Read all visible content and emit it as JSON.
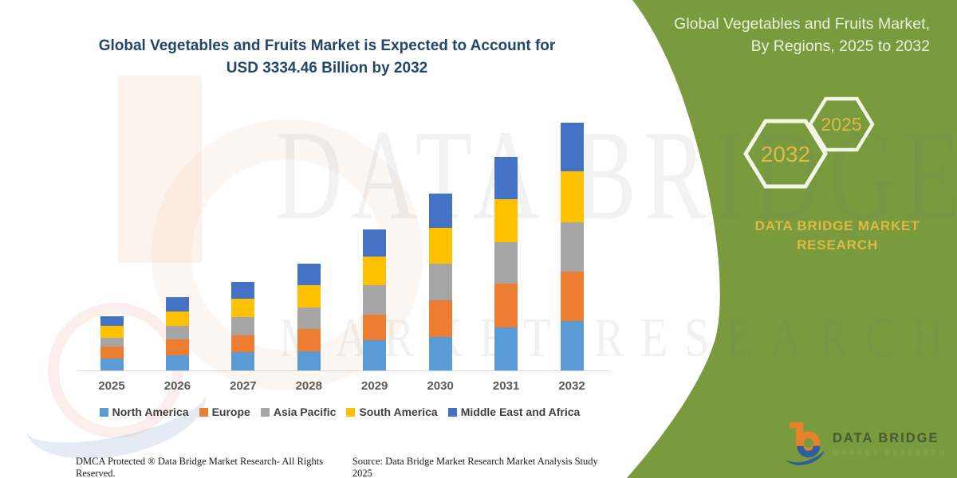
{
  "header": {
    "title_line1": "Global Vegetables and Fruits Market is Expected to Account for",
    "title_line2": "USD 3334.46 Billion by 2032"
  },
  "side_panel": {
    "title_line1": "Global Vegetables and Fruits Market,",
    "title_line2": "By Regions, 2025 to 2032",
    "hexagon_back_label": "2032",
    "hexagon_front_label": "2025",
    "brand_line1": "DATA BRIDGE MARKET",
    "brand_line2": "RESEARCH",
    "colors": {
      "panel_green": "#7A9A3E",
      "gold_text": "#DCBA45",
      "hexagon_stroke": "#F2F6E7",
      "panel_title_text": "#EAF1DC"
    }
  },
  "watermark": {
    "line1": "DATA BRIDGE",
    "line2": "MARKET RESEARCH"
  },
  "footer": {
    "dmca": "DMCA Protected ® Data Bridge Market Research-  All Rights Reserved.",
    "source": "Source: Data Bridge Market Research  Market Analysis Study 2025"
  },
  "logo": {
    "text_primary": "DATA BRIDGE",
    "text_secondary": "MARKET RESEARCH",
    "mark_orange": "#E8822A",
    "mark_blue": "#2E5E9E"
  },
  "chart_data": {
    "type": "bar",
    "stacked": true,
    "title": "Global Vegetables and Fruits Market is Expected to Account for USD 3334.46 Billion by 2032",
    "unit": "USD Billion",
    "categories": [
      "2025",
      "2026",
      "2027",
      "2028",
      "2029",
      "2030",
      "2031",
      "2032"
    ],
    "series": [
      {
        "name": "North America",
        "color": "#5B9BD5",
        "values": [
          161,
          204,
          247,
          257,
          407,
          450,
          579,
          665
        ]
      },
      {
        "name": "Europe",
        "color": "#ED7D31",
        "values": [
          161,
          214,
          225,
          297,
          343,
          490,
          590,
          665
        ]
      },
      {
        "name": "Asia Pacific",
        "color": "#A5A5A5",
        "values": [
          117,
          186,
          247,
          293,
          397,
          493,
          554,
          665
        ]
      },
      {
        "name": "South America",
        "color": "#FFC000",
        "values": [
          161,
          190,
          246,
          303,
          386,
          482,
          582,
          686
        ]
      },
      {
        "name": "Middle East and Africa",
        "color": "#4472C4",
        "values": [
          132,
          190,
          225,
          286,
          364,
          461,
          561,
          653.46
        ]
      }
    ],
    "totals_estimated": [
      732,
      984,
      1190,
      1436,
      1897,
      2376,
      2866,
      3334.46
    ],
    "stack_order_bottom_to_top": [
      "North America",
      "Europe",
      "Asia Pacific",
      "South America",
      "Middle East and Africa"
    ],
    "annotation_total_2032": "USD 3334.46 Billion",
    "xlabel": "",
    "ylabel": "",
    "y_axis_visible": false,
    "gridlines": false,
    "legend_position": "bottom"
  }
}
